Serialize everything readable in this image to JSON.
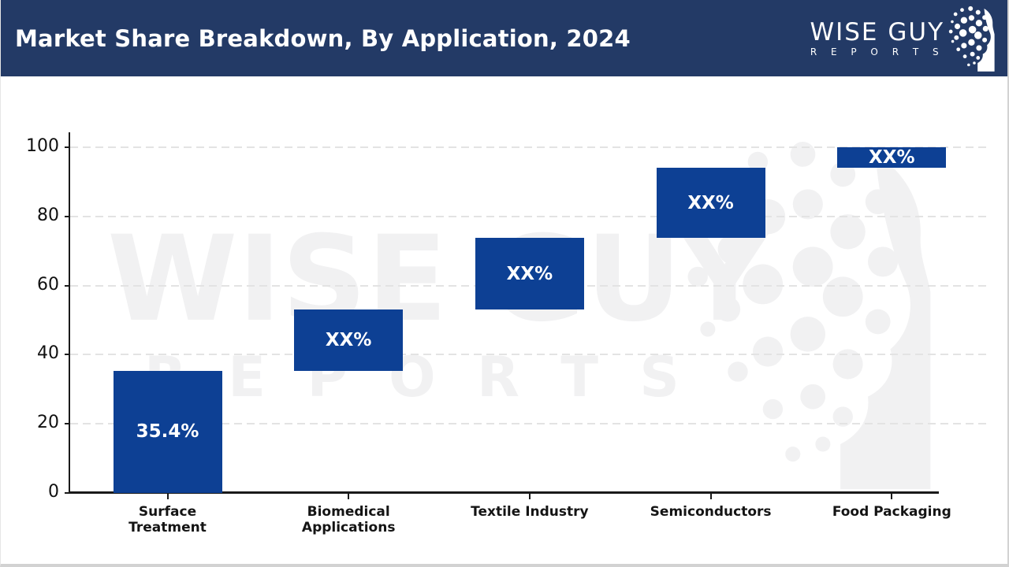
{
  "header": {
    "title": "Market Share Breakdown, By Application, 2024",
    "background_color": "#233a66",
    "brand": {
      "name": "WISE GUY",
      "subtitle": "R E P O R T S"
    }
  },
  "watermark": {
    "line1": "WISE GUY",
    "line2": "R E P O R T S"
  },
  "chart_data": {
    "type": "bar",
    "subtype": "floating-waterfall",
    "title": "Market Share Breakdown, By Application, 2024",
    "categories": [
      "Surface Treatment",
      "Biomedical Applications",
      "Textile Industry",
      "Semiconductors",
      "Food Packaging"
    ],
    "segments": [
      {
        "category": "Surface Treatment",
        "start": 0,
        "end": 35.4,
        "label": "35.4%"
      },
      {
        "category": "Biomedical Applications",
        "start": 35.4,
        "end": 53.0,
        "label": "XX%"
      },
      {
        "category": "Textile Industry",
        "start": 53.0,
        "end": 73.8,
        "label": "XX%"
      },
      {
        "category": "Semiconductors",
        "start": 73.8,
        "end": 94.0,
        "label": "XX%"
      },
      {
        "category": "Food Packaging",
        "start": 94.0,
        "end": 100.0,
        "label": "XX%"
      }
    ],
    "series": [
      {
        "name": "Market Share",
        "values": [
          35.4,
          17.6,
          20.8,
          20.2,
          6.0
        ]
      }
    ],
    "yticks": [
      0,
      20,
      40,
      60,
      80,
      100
    ],
    "ylim": [
      0,
      100
    ],
    "xlabel": "",
    "ylabel": "",
    "grid": "horizontal-dashed",
    "legend": "none",
    "bar_color": "#0d4094",
    "bar_label_color": "#ffffff",
    "axis_color": "#1a1a1a",
    "gridline_color": "#e3e3e3"
  }
}
